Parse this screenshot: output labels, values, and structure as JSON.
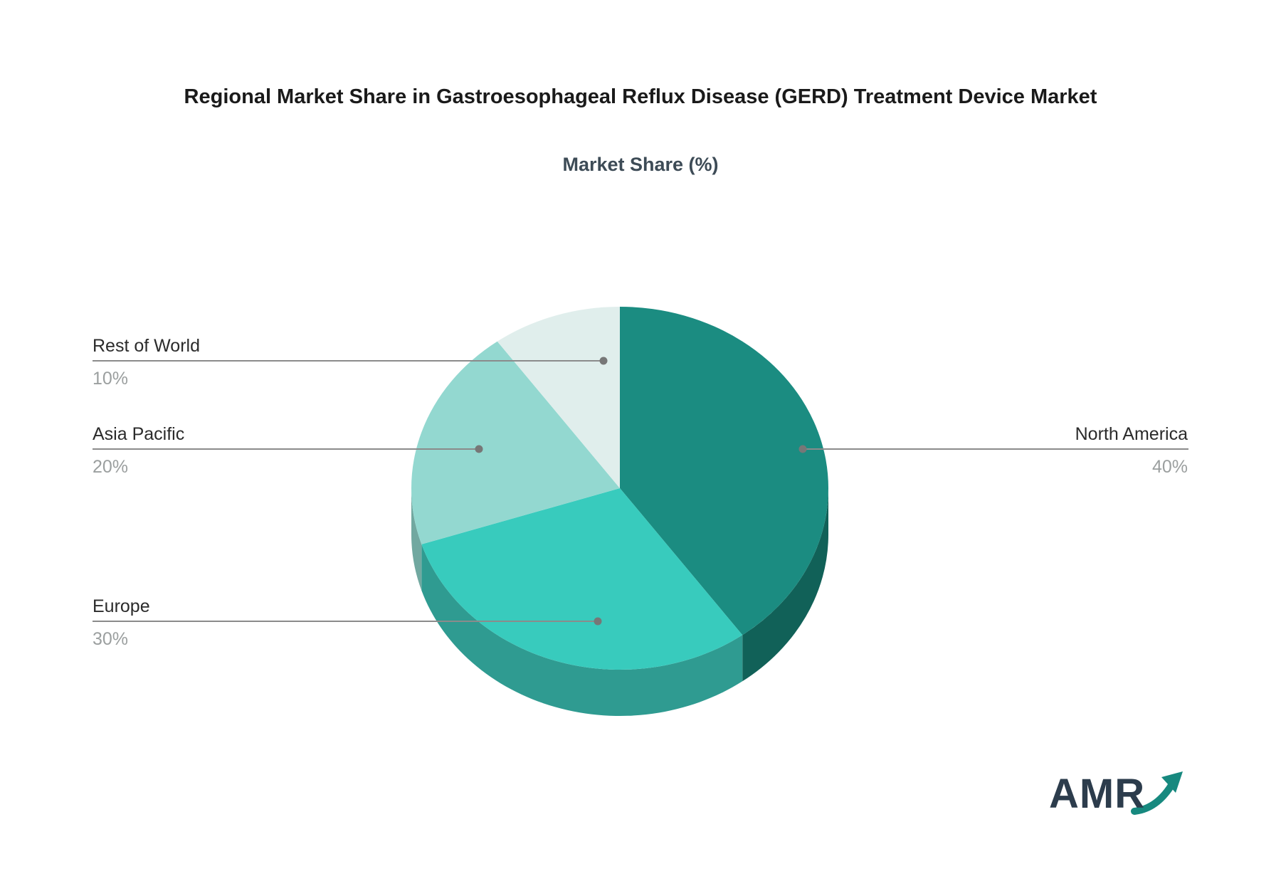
{
  "title": "Regional Market Share in Gastroesophageal Reflux Disease (GERD) Treatment Device Market",
  "subtitle": "Market Share (%)",
  "logo": {
    "text": "AMR"
  },
  "colors": {
    "leader_line": "#8b8b8b",
    "leader_dot": "#777777",
    "label_text": "#2b2b2b",
    "percent_text": "#9b9f9f",
    "subtitle_text": "#3d4b56",
    "logo_text": "#2c3c4c",
    "logo_arrow": "#17897f"
  },
  "chart_data": {
    "type": "pie",
    "effect": "3d",
    "title": "Regional Market Share in Gastroesophageal Reflux Disease (GERD) Treatment Device Market",
    "subtitle": "Market Share (%)",
    "unit": "%",
    "direction": "clockwise",
    "start_angle_deg": 0,
    "legend_position": "none",
    "slices": [
      {
        "label": "North America",
        "value": 40,
        "display_value": "40%",
        "color": "#1b8c81",
        "side_color": "#116158"
      },
      {
        "label": "Europe",
        "value": 30,
        "display_value": "30%",
        "color": "#38cbbd",
        "side_color": "#2f9b91"
      },
      {
        "label": "Asia Pacific",
        "value": 20,
        "display_value": "20%",
        "color": "#93d8d0",
        "side_color": "#71a8a0"
      },
      {
        "label": "Rest of World",
        "value": 10,
        "display_value": "10%",
        "color": "#e0eeec"
      }
    ]
  }
}
